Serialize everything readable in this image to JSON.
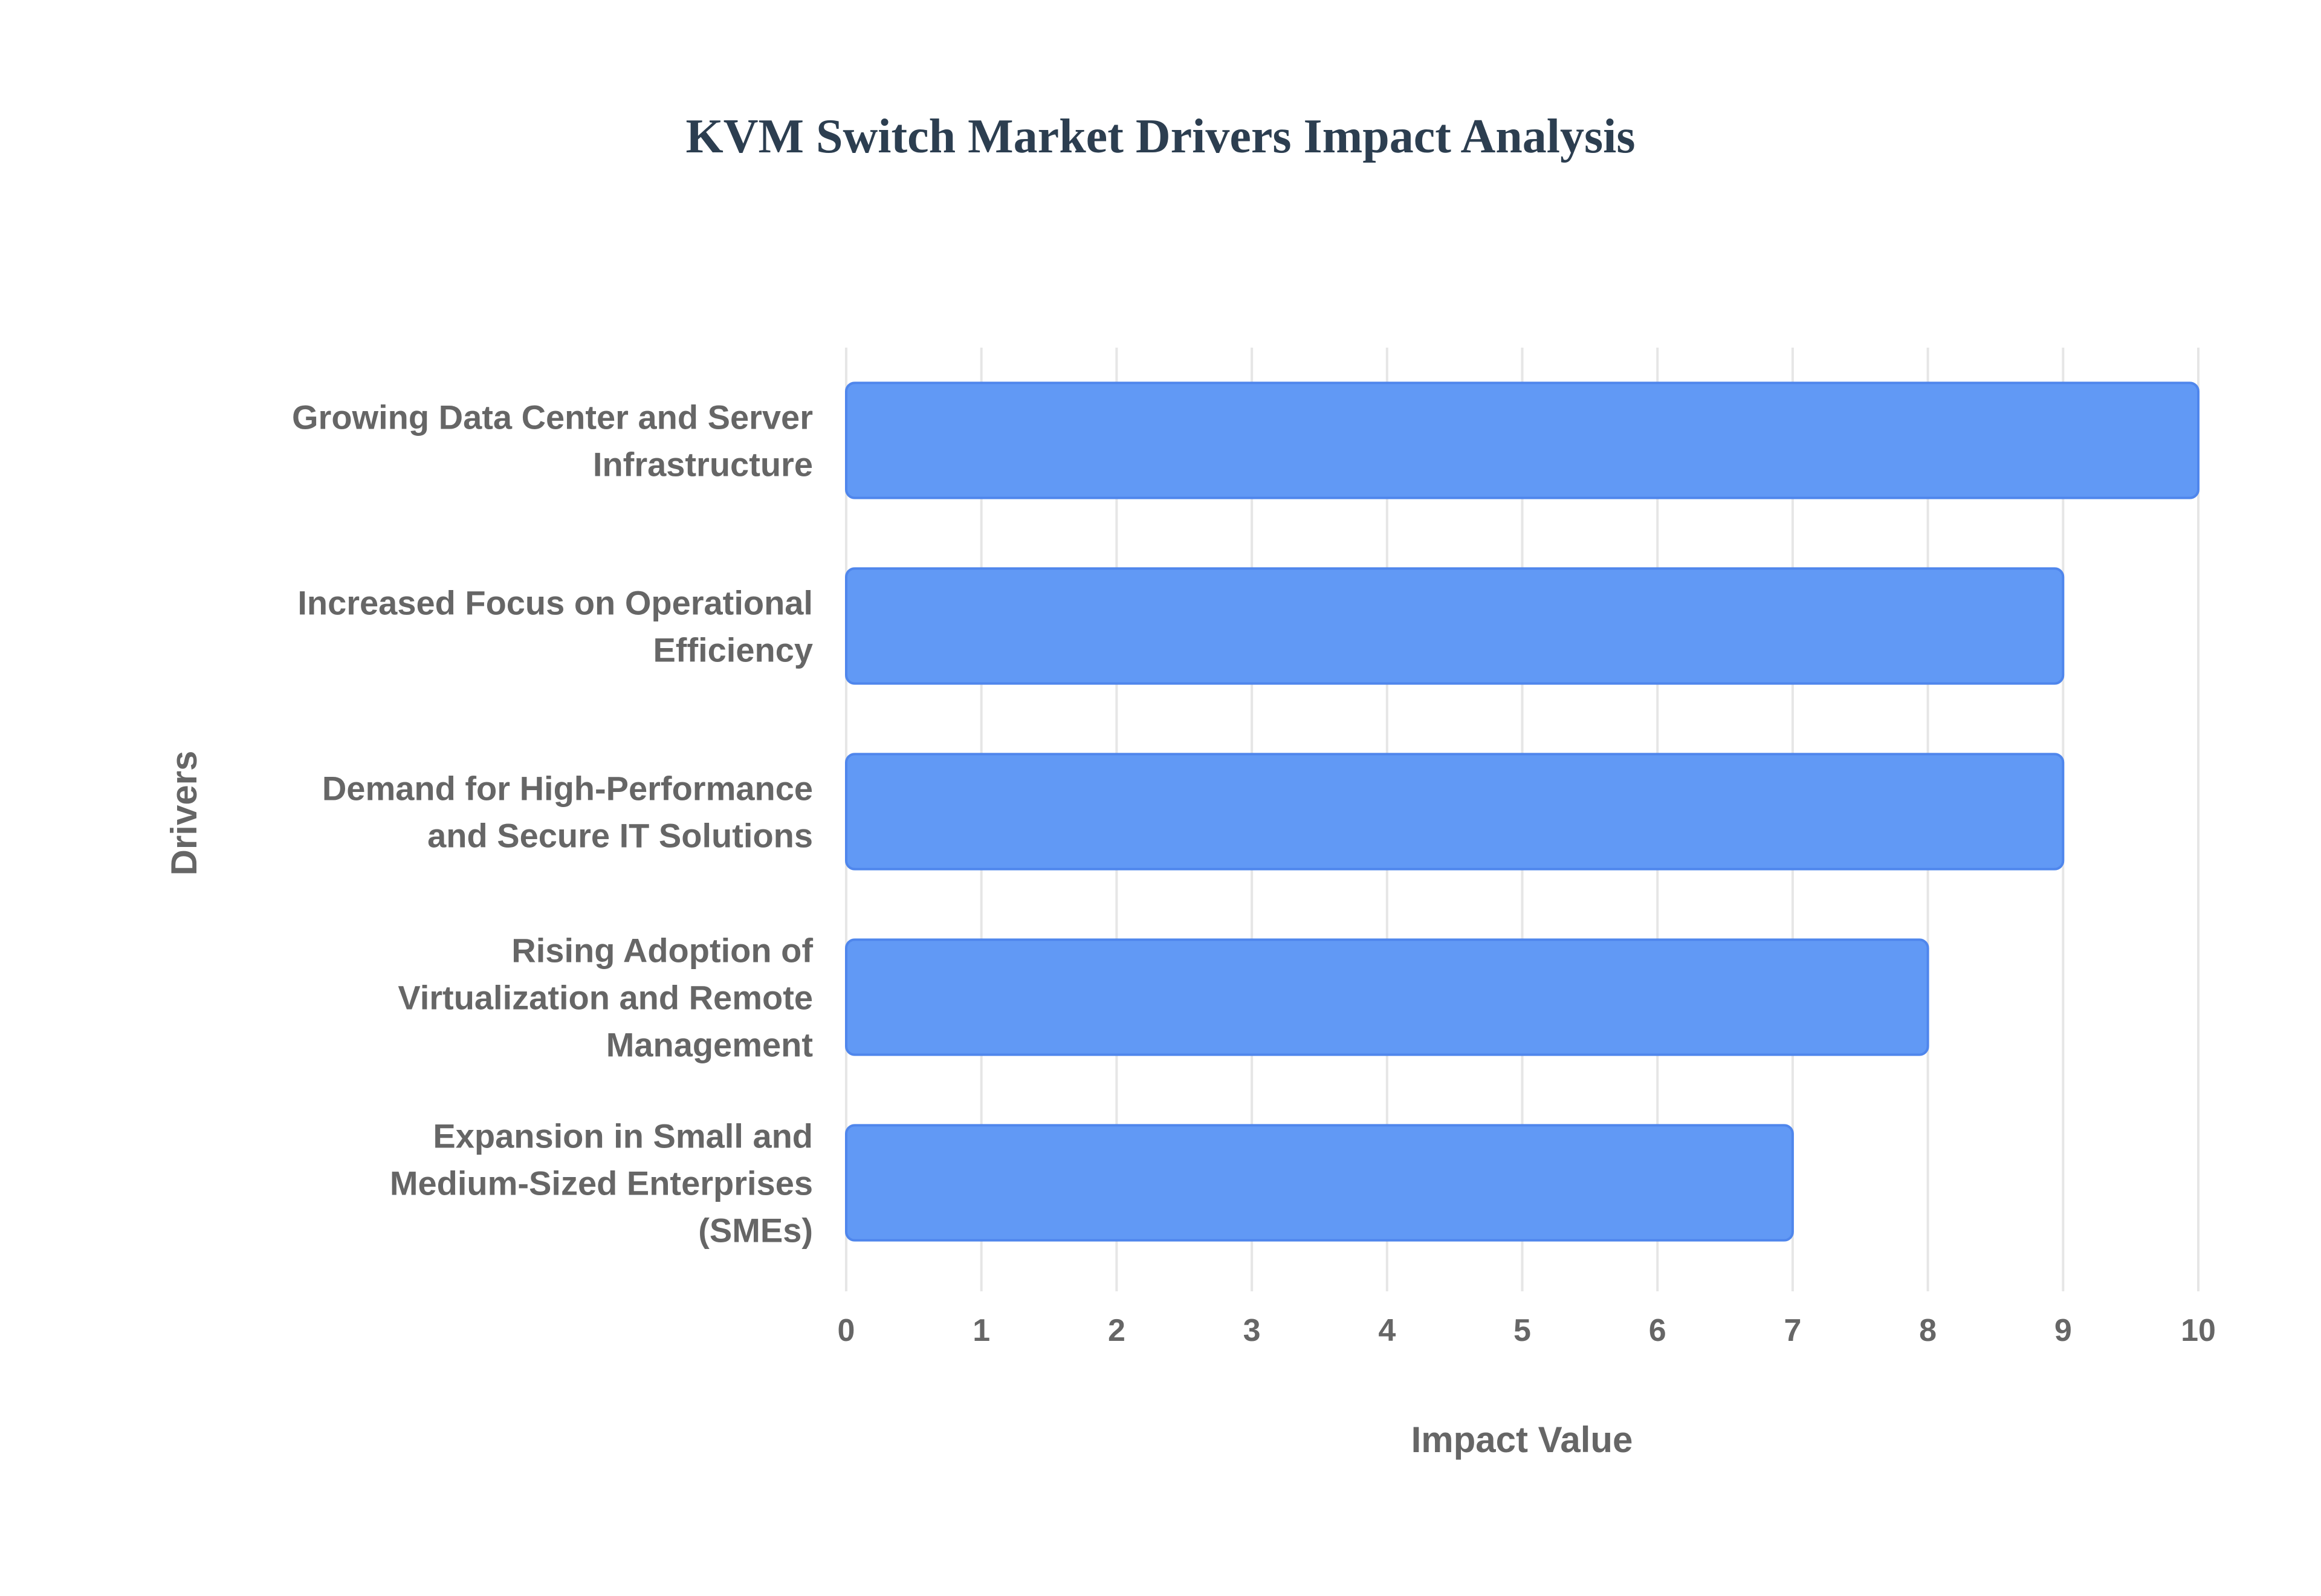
{
  "chart_data": {
    "type": "bar",
    "orientation": "horizontal",
    "title": "KVM Switch Market Drivers Impact Analysis",
    "xlabel": "Impact Value",
    "ylabel": "Drivers",
    "xlim": [
      0,
      10
    ],
    "x_ticks": [
      0,
      1,
      2,
      3,
      4,
      5,
      6,
      7,
      8,
      9,
      10
    ],
    "grid": true,
    "bar_color": "#6199f5",
    "bar_border_color": "#4f86ec",
    "categories": [
      [
        "Growing Data Center and Server",
        "Infrastructure"
      ],
      [
        "Increased Focus on Operational",
        "Efficiency"
      ],
      [
        "Demand for High-Performance",
        "and Secure IT Solutions"
      ],
      [
        "Rising Adoption of",
        "Virtualization and Remote",
        "Management"
      ],
      [
        "Expansion in Small and",
        "Medium-Sized Enterprises",
        "(SMEs)"
      ]
    ],
    "values": [
      10,
      9,
      9,
      8,
      7
    ]
  }
}
